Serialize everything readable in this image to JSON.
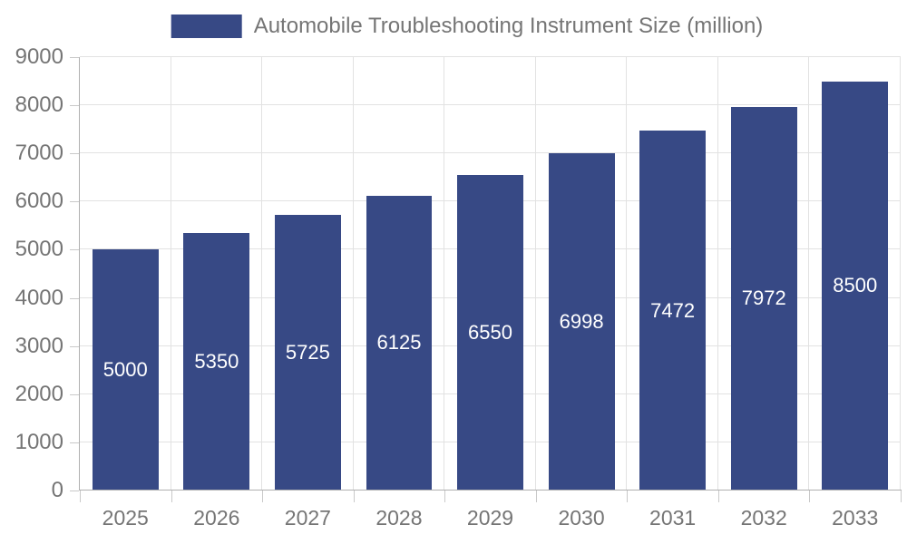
{
  "chart_data": {
    "type": "bar",
    "title": "Automobile Troubleshooting Instrument Size (million)",
    "categories": [
      "2025",
      "2026",
      "2027",
      "2028",
      "2029",
      "2030",
      "2031",
      "2032",
      "2033"
    ],
    "values": [
      5000,
      5350,
      5725,
      6125,
      6550,
      6998,
      7472,
      7972,
      8500
    ],
    "xlabel": "",
    "ylabel": "",
    "ylim": [
      0,
      9000
    ],
    "yticks": [
      0,
      1000,
      2000,
      3000,
      4000,
      5000,
      6000,
      7000,
      8000,
      9000
    ],
    "grid": true,
    "legend_position": "top-center",
    "value_labels": "inside-center",
    "colors": {
      "bar": "#374985",
      "bar_label_text": "#FFFFFF",
      "axis_text": "#757575",
      "axis_line": "#B0B0B0",
      "gridline": "#E2E2E2",
      "tick": "#C9C9C9",
      "background": "#FFFFFF"
    }
  }
}
